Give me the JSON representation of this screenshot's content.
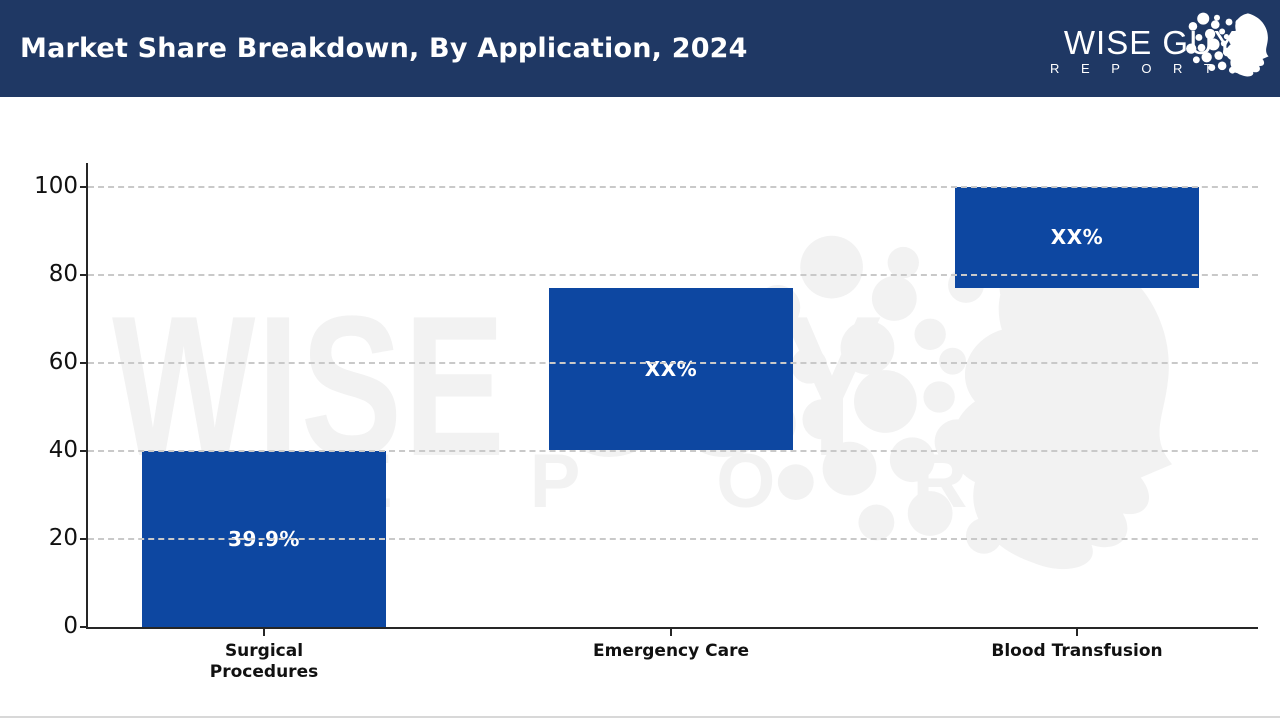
{
  "header": {
    "title": "Market Share Breakdown, By Application, 2024",
    "bg_color": "#1f3864",
    "logo": {
      "line1": "WISE GUY",
      "line2": "R E P O R T S"
    }
  },
  "watermark": {
    "line1": "WISE GUY",
    "line2": "R E P O R T S"
  },
  "colors": {
    "header_navy": "#1f3864",
    "bar_blue": "#0d47a1",
    "bar_label_white": "#ffffff",
    "gridline_gray": "#c9c9c9",
    "watermark_gray": "#f2f2f2"
  },
  "chart_data": {
    "type": "bar",
    "subtype": "floating-waterfall",
    "title": "Market Share Breakdown, By Application, 2024",
    "xlabel": "",
    "ylabel": "",
    "categories": [
      "Surgical Procedures",
      "Emergency Care",
      "Blood Transfusion"
    ],
    "category_label_lines": [
      [
        "Surgical",
        "Procedures"
      ],
      [
        "Emergency Care"
      ],
      [
        "Blood Transfusion"
      ]
    ],
    "segments": [
      {
        "category": "Surgical Procedures",
        "start": 0,
        "end": 40,
        "label": "39.9%"
      },
      {
        "category": "Emergency Care",
        "start": 40,
        "end": 77,
        "label": "XX%"
      },
      {
        "category": "Blood Transfusion",
        "start": 77,
        "end": 100,
        "label": "XX%"
      }
    ],
    "y_ticks": [
      0,
      20,
      40,
      60,
      80,
      100
    ],
    "ylim": [
      0,
      105
    ],
    "grid": "horizontal dashed, drawn over bars",
    "legend": "none",
    "bar_color": "#0d47a1"
  }
}
